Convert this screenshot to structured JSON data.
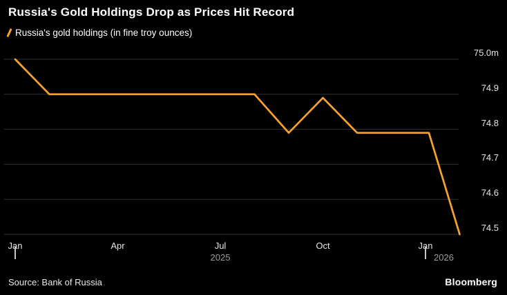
{
  "title": "Russia's Gold Holdings Drop as Prices Hit Record",
  "legend": {
    "label": "Russia's gold holdings (in fine troy ounces)"
  },
  "source": "Source: Bank of Russia",
  "brand": "Bloomberg",
  "colors": {
    "line": "#F5A033",
    "grid": "#333333",
    "background": "#000000",
    "title_text": "#FFFFFF",
    "axis_text": "#E6E6E6",
    "year_text": "#9C9C9C",
    "divider": "#C8C8C8"
  },
  "chart_data": {
    "type": "line",
    "title": "Russia's Gold Holdings Drop as Prices Hit Record",
    "series_name": "Russia's gold holdings (in fine troy ounces)",
    "unit": "million fine troy ounces",
    "points": [
      {
        "date": "2025-01",
        "value": 75.0
      },
      {
        "date": "2025-02",
        "value": 74.9
      },
      {
        "date": "2025-08",
        "value": 74.9
      },
      {
        "date": "2025-09",
        "value": 74.79
      },
      {
        "date": "2025-10",
        "value": 74.89
      },
      {
        "date": "2025-11",
        "value": 74.79
      },
      {
        "date": "2026-01",
        "value": 74.79
      },
      {
        "date": "2026-02",
        "value": 74.5
      }
    ],
    "x_months": [
      0,
      1,
      7,
      8,
      9,
      10,
      12.1,
      13
    ],
    "values": [
      75.0,
      74.9,
      74.9,
      74.79,
      74.89,
      74.79,
      74.79,
      74.5
    ],
    "y_axis": {
      "side": "right",
      "labels": [
        "75.0m",
        "74.9",
        "74.8",
        "74.7",
        "74.6",
        "74.5"
      ],
      "values": [
        75.0,
        74.9,
        74.8,
        74.7,
        74.6,
        74.5
      ],
      "ylim": [
        74.45,
        75.02
      ]
    },
    "x_axis": {
      "tick_labels": [
        "Jan",
        "Apr",
        "Jul",
        "Oct",
        "Jan"
      ],
      "tick_months": [
        0,
        3,
        6,
        9,
        12
      ],
      "years": [
        {
          "label": "2025",
          "divider_month": 0,
          "label_center_month": 6
        },
        {
          "label": "2026",
          "divider_month": 12,
          "label_center_month": null
        }
      ]
    },
    "grid": "horizontal",
    "legend_position": "top-left"
  }
}
